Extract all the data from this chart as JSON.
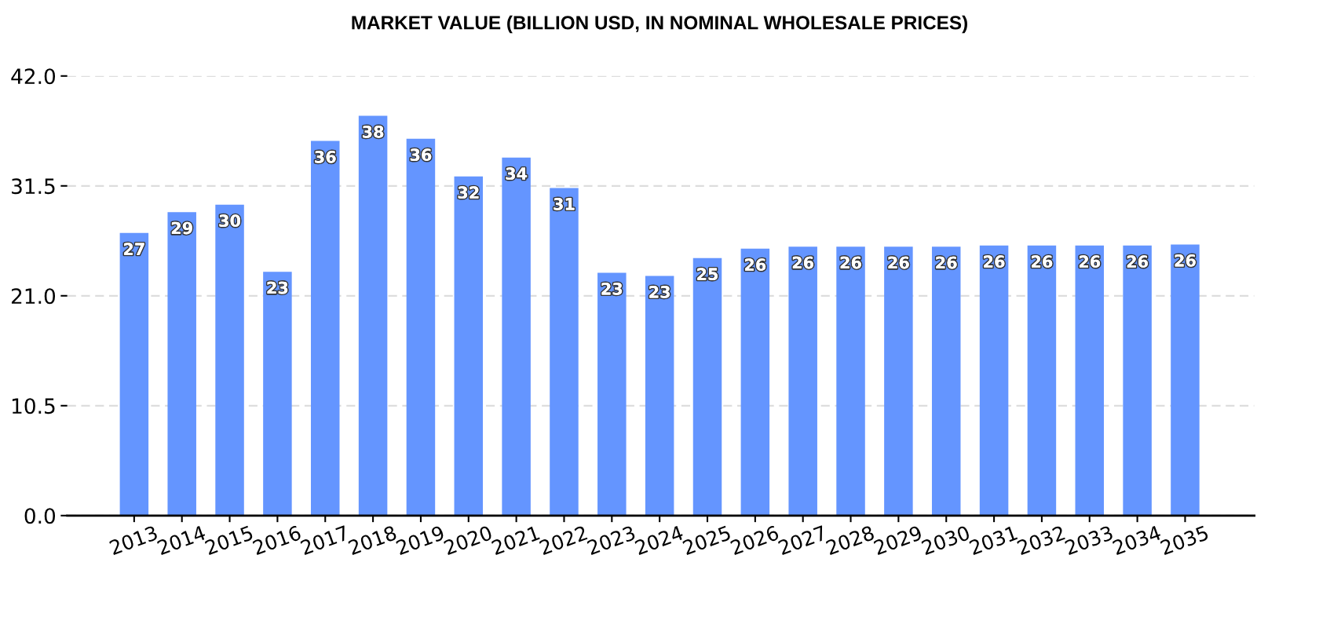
{
  "chart_data": {
    "type": "bar",
    "title": "MARKET VALUE (BILLION USD, IN NOMINAL WHOLESALE PRICES)",
    "categories": [
      "2013",
      "2014",
      "2015",
      "2016",
      "2017",
      "2018",
      "2019",
      "2020",
      "2021",
      "2022",
      "2023",
      "2024",
      "2025",
      "2026",
      "2027",
      "2028",
      "2029",
      "2030",
      "2031",
      "2032",
      "2033",
      "2034",
      "2035"
    ],
    "values": [
      27.0,
      29.0,
      29.7,
      23.3,
      35.8,
      38.2,
      36.0,
      32.4,
      34.2,
      31.3,
      23.2,
      22.9,
      24.6,
      25.5,
      25.7,
      25.7,
      25.7,
      25.7,
      25.8,
      25.8,
      25.8,
      25.8,
      25.9
    ],
    "value_labels": [
      "27",
      "29",
      "30",
      "23",
      "36",
      "38",
      "36",
      "32",
      "34",
      "31",
      "23",
      "23",
      "25",
      "26",
      "26",
      "26",
      "26",
      "26",
      "26",
      "26",
      "26",
      "26",
      "26"
    ],
    "color": "#6495ff",
    "ylim": [
      0,
      42
    ],
    "yticks": [
      {
        "value": 0,
        "label": "0.0"
      },
      {
        "value": 10.5,
        "label": "10.5"
      },
      {
        "value": 21,
        "label": "21.0"
      },
      {
        "value": 31.5,
        "label": "31.5"
      },
      {
        "value": 42,
        "label": "42.0"
      }
    ],
    "grid": "y"
  }
}
